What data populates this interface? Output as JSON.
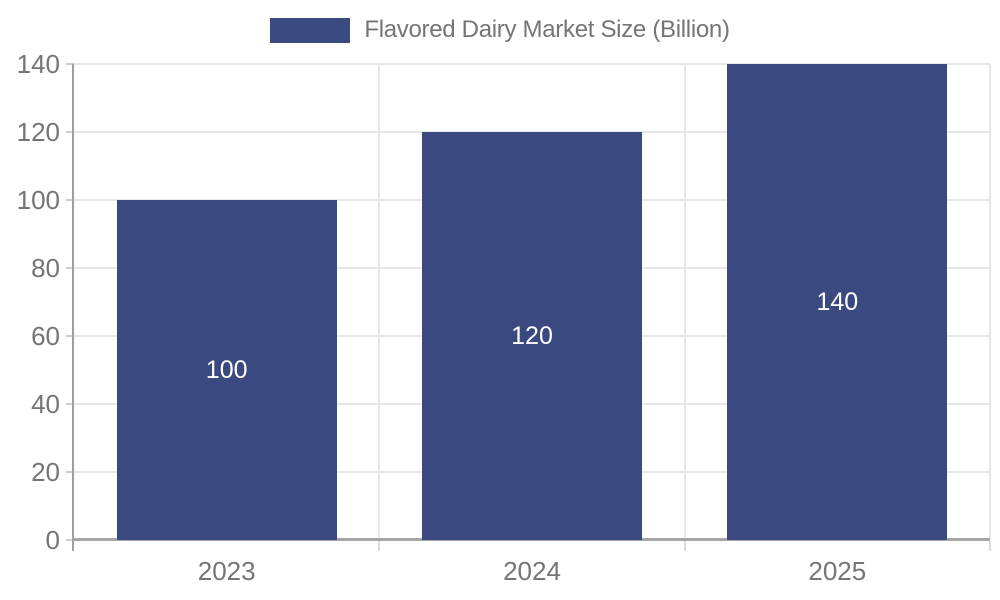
{
  "legend": {
    "label": "Flavored Dairy Market Size (Billion)"
  },
  "colors": {
    "bar": "#3A4A80",
    "bar_label_text": "#FFFFFF",
    "tick_text": "#757575",
    "grid_line": "#E7E7E7",
    "y_axis_line": "#9E9E9E",
    "x_axis_line": "#A6A6A6",
    "y_tick_mark": "#CCCCCC",
    "x_tick_mark": "#DBDBDB",
    "background": "#FFFFFF"
  },
  "chart_data": {
    "type": "bar",
    "title": "Flavored Dairy Market Size (Billion)",
    "series_name": "Flavored Dairy Market Size (Billion)",
    "categories": [
      "2023",
      "2024",
      "2025"
    ],
    "values": [
      100,
      120,
      140
    ],
    "bar_labels": [
      "100",
      "120",
      "140"
    ],
    "xlabel": "",
    "ylabel": "",
    "ylim": [
      0,
      140
    ],
    "yticks": [
      0,
      20,
      40,
      60,
      80,
      100,
      120,
      140
    ],
    "grid": true,
    "legend_position": "top-center"
  }
}
